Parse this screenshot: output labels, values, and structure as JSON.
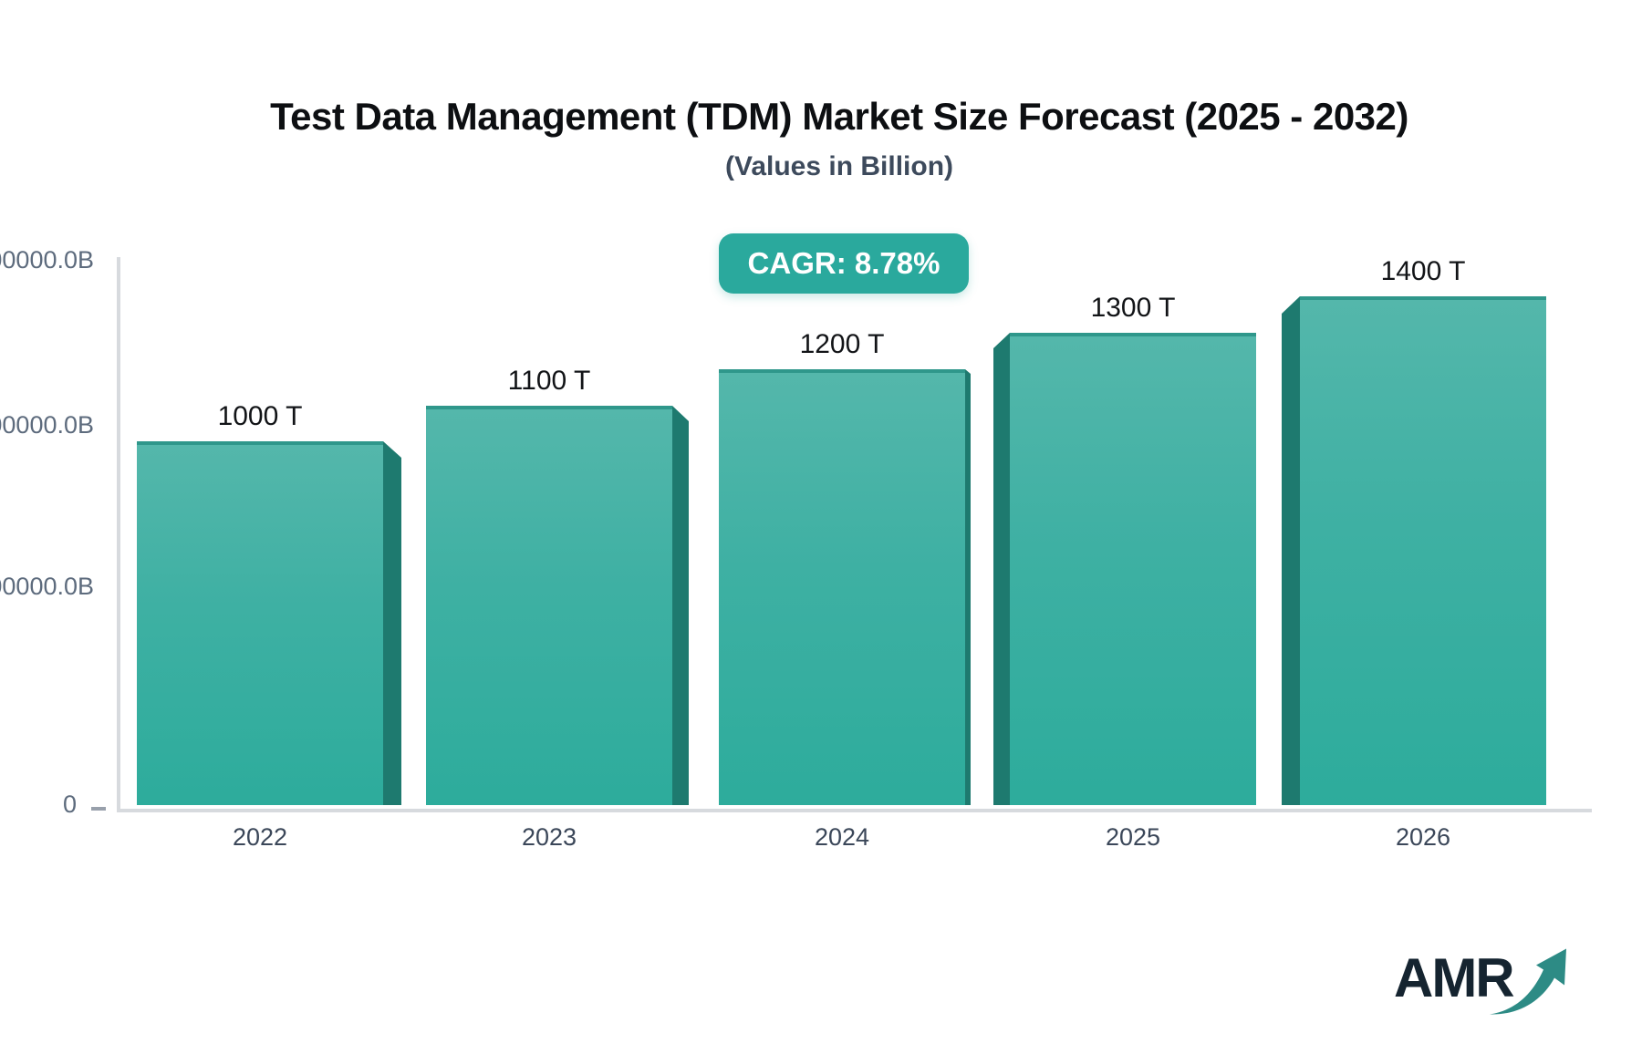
{
  "header": {
    "title": "Test Data Management (TDM) Market Size Forecast (2025 - 2032)",
    "subtitle": "(Values in Billion)",
    "badge_label": "CAGR: 8.78%"
  },
  "chart_data": {
    "type": "bar",
    "title": "Test Data Management (TDM) Market Size Forecast (2025 - 2032)",
    "subtitle": "(Values in Billion)",
    "annotation": "CAGR: 8.78%",
    "categories": [
      "2022",
      "2023",
      "2024",
      "2025",
      "2026"
    ],
    "values": [
      1000,
      1100,
      1200,
      1300,
      1400
    ],
    "value_labels": [
      "1000 T",
      "1100 T",
      "1200 T",
      "1300 T",
      "1400 T"
    ],
    "unit": "T",
    "xlabel": "",
    "ylabel": "",
    "ylim": [
      0,
      1500
    ],
    "grid": false,
    "legend": false,
    "style_3d": true,
    "y_axis": {
      "ticks": [
        "00000.0B",
        "00000.0B",
        "00000.0B"
      ],
      "zero_label": "0"
    },
    "colors": {
      "bar_top": "#54b7ab",
      "bar_bottom": "#2dac9c",
      "bar_side": "#1e7a6f",
      "bar_top_edge": "#2f978b",
      "badge_bg": "#2aa99d",
      "axis": "#d7dade",
      "y_label_text": "#5d6b7d",
      "x_label_text": "#3b4759"
    }
  },
  "logo": {
    "text": "AMR"
  }
}
